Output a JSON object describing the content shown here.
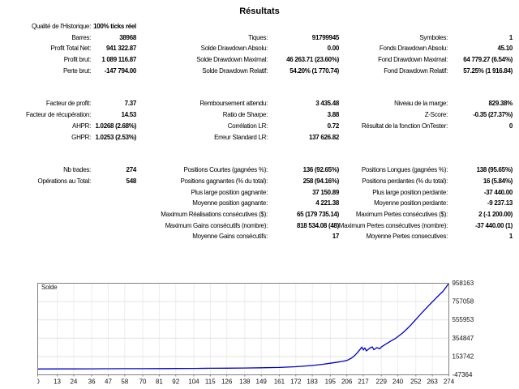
{
  "title": "Résultats",
  "stats": {
    "rows": [
      [
        "Qualité de l'Historique:",
        "100% ticks réel",
        "",
        "",
        "",
        ""
      ],
      [
        "Barres:",
        "38968",
        "Tiques:",
        "91799945",
        "Symboles:",
        "1"
      ],
      [
        "Profit Total Net:",
        "941 322.87",
        "Solde Drawdown Absolu:",
        "0.00",
        "Fonds Drawdown Absolu:",
        "45.10"
      ],
      [
        "Profit brut:",
        "1 089 116.87",
        "Solde Drawdown Maximal:",
        "46 263.71 (23.60%)",
        "Fond Drawdown Maximal:",
        "64 779.27 (6.54%)"
      ],
      [
        "Perte brut:",
        "-147 794.00",
        "Solde Drawdown Relatif:",
        "54.20% (1 770.74)",
        "Fond Drawdown Relatif:",
        "57.25% (1 916.84)"
      ],
      "spacer",
      [
        "Facteur de profit:",
        "7.37",
        "Remboursement attendu:",
        "3 435.48",
        "Niveau de la marge:",
        "829.38%"
      ],
      [
        "Facteur de récupération:",
        "14.53",
        "Ratio de Sharpe:",
        "3.88",
        "Z-Score:",
        "-0.35 (27.37%)"
      ],
      [
        "AHPR:",
        "1.0268 (2.68%)",
        "Corrélation LR:",
        "0.72",
        "Résultat de la fonction OnTester:",
        "0"
      ],
      [
        "GHPR:",
        "1.0253 (2.53%)",
        "Erreur Standard LR:",
        "137 626.82",
        "",
        ""
      ],
      "spacer",
      [
        "Nb trades:",
        "274",
        "Positions Courtes (gagnées %):",
        "136 (92.65%)",
        "Positions Longues (gagnées %):",
        "138 (95.65%)"
      ],
      [
        "Opérations au Total:",
        "548",
        "Positions gagnantes (% du total):",
        "258 (94.16%)",
        "Positions perdantes (% du total):",
        "16 (5.84%)"
      ],
      [
        "",
        "",
        "Plus large position gagnante:",
        "37 150.89",
        "Plus large position perdante:",
        "-37 440.00"
      ],
      [
        "",
        "",
        "Moyenne position gagnante:",
        "4 221.38",
        "Moyenne position perdante:",
        "-9 237.13"
      ],
      [
        "",
        "",
        "Maximum Réalisations consécutives ($):",
        "65 (179 735.14)",
        "Maximum Pertes consécutives ($):",
        "2 (-1 200.00)"
      ],
      [
        "",
        "",
        "Maximum Gains consécutifs (nombre):",
        "818 534.08 (48)",
        "Maximum Pertes consécutives (nombre):",
        "-37 440.00 (1)"
      ],
      [
        "",
        "",
        "Moyenne Gains consécutifs:",
        "17",
        "Moyenne Pertes consecutives:",
        "1"
      ]
    ]
  },
  "chart_data": {
    "type": "line",
    "title": "Solde",
    "xlim": [
      0,
      274
    ],
    "ylim": [
      -47364,
      958163
    ],
    "xticks": [
      0,
      13,
      24,
      36,
      47,
      58,
      70,
      81,
      92,
      104,
      115,
      126,
      138,
      149,
      161,
      172,
      183,
      195,
      206,
      217,
      229,
      240,
      252,
      263,
      274
    ],
    "yticks": [
      958163,
      757058,
      555953,
      354847,
      153742,
      -47364
    ],
    "grid": true,
    "legend_position": "top-left-inside",
    "series": [
      {
        "name": "Solde",
        "color": "#0000cc",
        "points": [
          [
            0,
            16840
          ],
          [
            13,
            17300
          ],
          [
            24,
            17900
          ],
          [
            36,
            18600
          ],
          [
            47,
            19200
          ],
          [
            58,
            19900
          ],
          [
            70,
            20700
          ],
          [
            81,
            21500
          ],
          [
            92,
            22300
          ],
          [
            104,
            23200
          ],
          [
            115,
            24300
          ],
          [
            126,
            25700
          ],
          [
            138,
            27500
          ],
          [
            149,
            30000
          ],
          [
            161,
            34000
          ],
          [
            172,
            42000
          ],
          [
            183,
            55000
          ],
          [
            190,
            68000
          ],
          [
            195,
            80000
          ],
          [
            200,
            92000
          ],
          [
            203,
            100000
          ],
          [
            206,
            110000
          ],
          [
            209,
            135000
          ],
          [
            211,
            160000
          ],
          [
            213,
            195000
          ],
          [
            215,
            235000
          ],
          [
            216,
            258000
          ],
          [
            217,
            225000
          ],
          [
            218,
            248000
          ],
          [
            219,
            215000
          ],
          [
            221,
            242000
          ],
          [
            223,
            260000
          ],
          [
            224,
            228000
          ],
          [
            226,
            252000
          ],
          [
            228,
            238000
          ],
          [
            229,
            258000
          ],
          [
            232,
            290000
          ],
          [
            235,
            320000
          ],
          [
            238,
            348000
          ],
          [
            240,
            372000
          ],
          [
            243,
            410000
          ],
          [
            246,
            455000
          ],
          [
            249,
            505000
          ],
          [
            252,
            560000
          ],
          [
            255,
            615000
          ],
          [
            258,
            668000
          ],
          [
            261,
            720000
          ],
          [
            264,
            770000
          ],
          [
            267,
            820000
          ],
          [
            270,
            868000
          ],
          [
            272,
            912000
          ],
          [
            274,
            958163
          ]
        ]
      }
    ]
  }
}
